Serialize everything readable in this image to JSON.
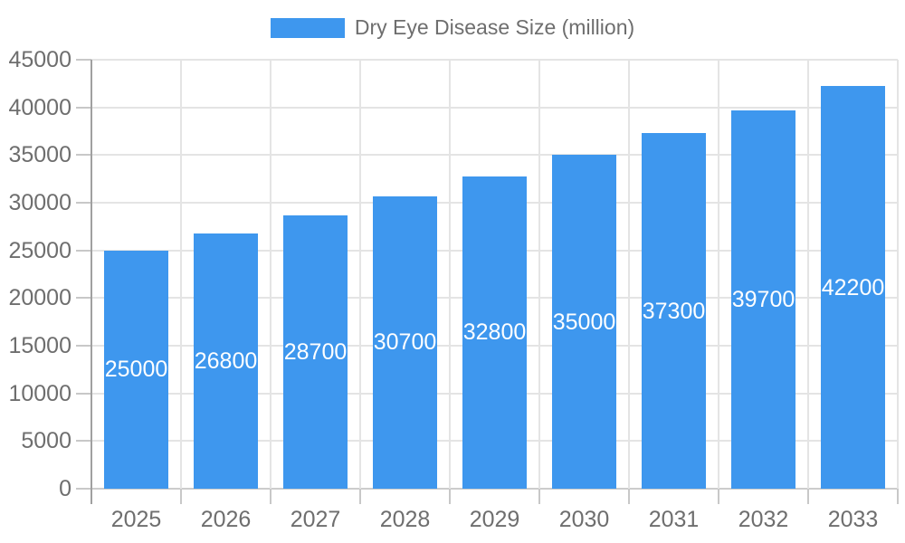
{
  "chart_data": {
    "type": "bar",
    "title": "",
    "legend": "Dry Eye Disease Size (million)",
    "legend_position": "top-center",
    "categories": [
      "2025",
      "2026",
      "2027",
      "2028",
      "2029",
      "2030",
      "2031",
      "2032",
      "2033"
    ],
    "values": [
      25000,
      26800,
      28700,
      30700,
      32800,
      35000,
      37300,
      39700,
      42200
    ],
    "bar_labels": [
      "25000",
      "26800",
      "28700",
      "30700",
      "32800",
      "35000",
      "37300",
      "39700",
      "42200"
    ],
    "ylim": [
      0,
      45000
    ],
    "ytick_step": 5000,
    "yticks": [
      0,
      5000,
      10000,
      15000,
      20000,
      25000,
      30000,
      35000,
      40000,
      45000
    ],
    "grid": true,
    "colors": {
      "bar": "#3e97ee",
      "grid": "#e4e4e4",
      "zero_line": "#cccccc",
      "axis_line": "#a0a0a0",
      "tick": "#c8c8c8",
      "axis_text": "#6e6e6e",
      "bar_label_text": "#ffffff",
      "background": "#ffffff"
    }
  }
}
